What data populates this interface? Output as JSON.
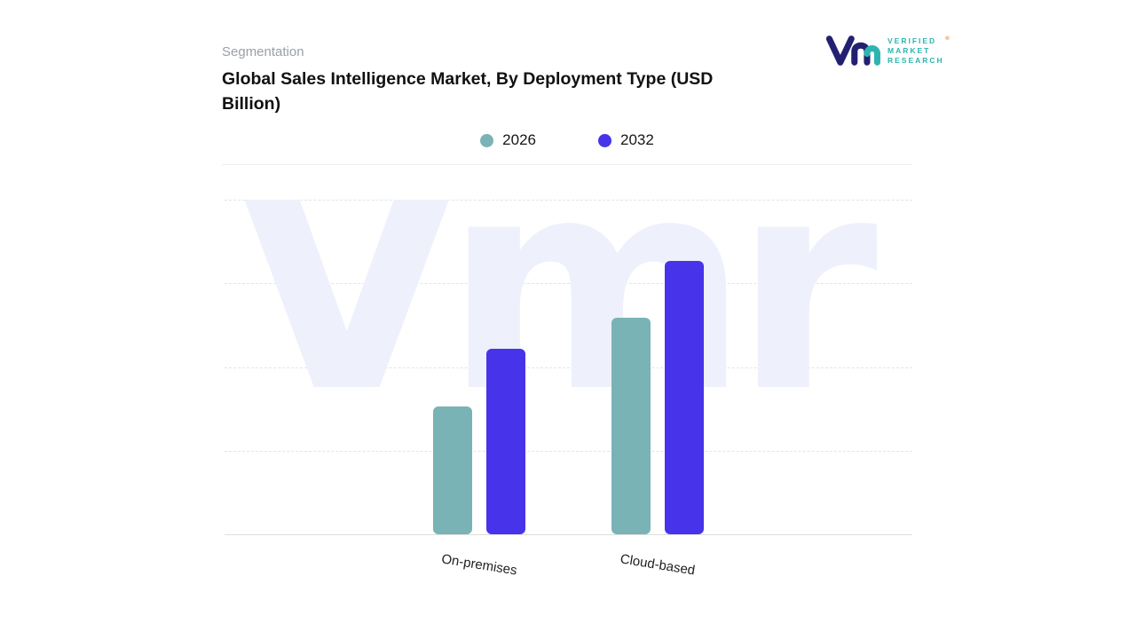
{
  "header": {
    "eyebrow": "Segmentation",
    "title": "Global Sales Intelligence Market, By Deployment Type (USD Billion)"
  },
  "logo": {
    "lines": [
      "VERIFIED",
      "MARKET",
      "RESEARCH"
    ],
    "registered": "®",
    "text_color": "#2cb5b0",
    "mark_navy": "#232072",
    "mark_teal": "#2cb5b0"
  },
  "watermark_text": "Vmr",
  "chart_data": {
    "type": "bar",
    "title": "Global Sales Intelligence Market, By Deployment Type (USD Billion)",
    "categories": [
      "On-premises",
      "Cloud-based"
    ],
    "series": [
      {
        "name": "2026",
        "color": "#7ab3b5",
        "values": [
          1.45,
          2.45
        ]
      },
      {
        "name": "2032",
        "color": "#4733ea",
        "values": [
          2.1,
          3.1
        ]
      }
    ],
    "ylim": [
      0,
      3.8
    ],
    "xlabel": "",
    "ylabel": "",
    "yaxis_labels_visible": false,
    "value_labels_visible": false,
    "grid": "horizontal-dashed",
    "legend_position": "top-center"
  }
}
